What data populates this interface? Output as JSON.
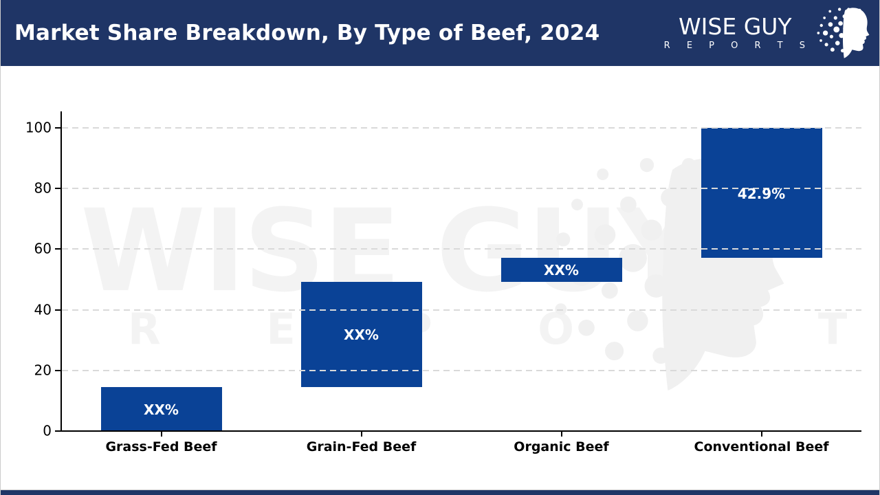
{
  "header": {
    "title": "Market Share Breakdown, By Type of Beef, 2024",
    "logo": {
      "name": "WISE GUY",
      "tagline": "R E P O R T S"
    }
  },
  "watermark": {
    "name": "WISE GUY",
    "tagline": "R E P O R T S"
  },
  "chart_data": {
    "type": "bar",
    "subtype": "floating-waterfall",
    "title": "Market Share Breakdown, By Type of Beef, 2024",
    "categories": [
      "Grass-Fed Beef",
      "Grain-Fed Beef",
      "Organic Beef",
      "Conventional Beef"
    ],
    "segments": [
      {
        "category": "Grass-Fed Beef",
        "start": 0,
        "end": 14.5,
        "value_estimate": 14.5,
        "value_label": "XX%"
      },
      {
        "category": "Grain-Fed Beef",
        "start": 14.5,
        "end": 49.3,
        "value_estimate": 34.8,
        "value_label": "XX%"
      },
      {
        "category": "Organic Beef",
        "start": 49.3,
        "end": 57.1,
        "value_estimate": 7.8,
        "value_label": "XX%"
      },
      {
        "category": "Conventional Beef",
        "start": 57.1,
        "end": 100,
        "value_estimate": 42.9,
        "value_label": "42.9%"
      }
    ],
    "xlabel": "",
    "ylabel": "",
    "yticks": [
      0,
      20,
      40,
      60,
      80,
      100
    ],
    "ylim": [
      0,
      105
    ],
    "grid": "horizontal-dashed",
    "legend": "none",
    "bar_color": "#0a4296",
    "bar_label_color": "#ffffff"
  },
  "colors": {
    "header_bg": "#1f3566",
    "footer_bg": "#1f3566",
    "bar": "#0a4296",
    "grid": "#d9d9d9",
    "axis": "#000000",
    "watermark": "#f3f3f3"
  }
}
